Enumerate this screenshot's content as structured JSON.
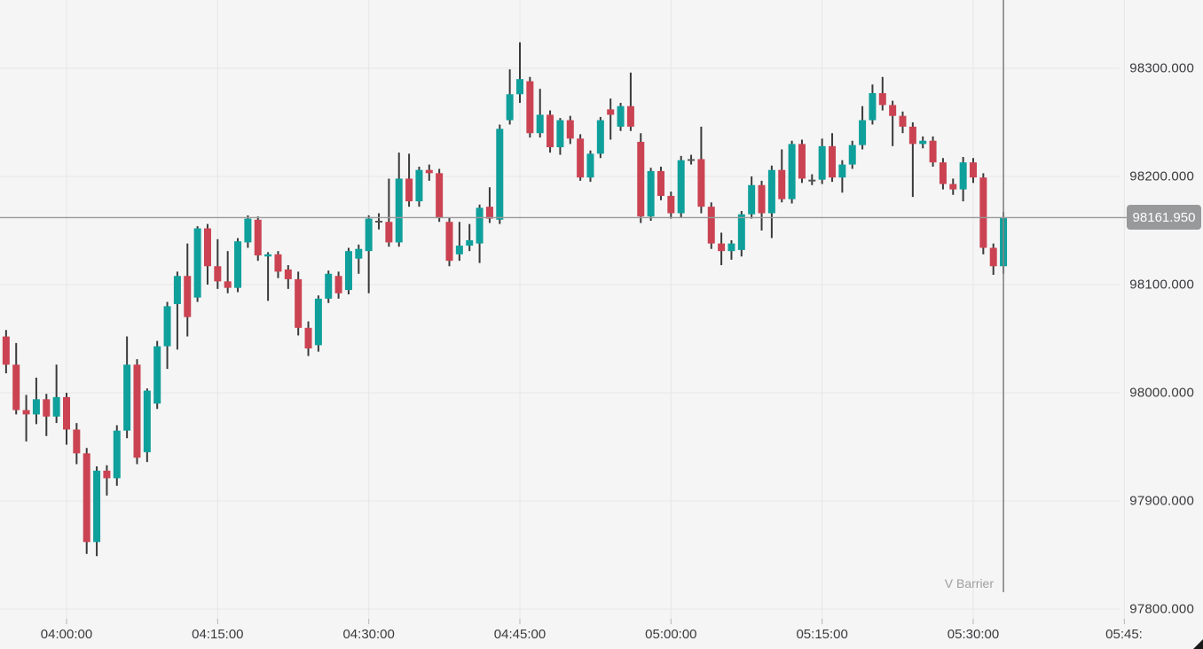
{
  "page": {
    "background": "#f5f5f5"
  },
  "spot": {
    "badge_label": "98161.950"
  },
  "barrier": {
    "label": "V Barrier"
  },
  "chart_data": {
    "type": "candlestick",
    "interval": "1m",
    "title": "",
    "xlabel": "",
    "ylabel": "",
    "x_axis": {
      "labels": [
        "04:00:00",
        "04:15:00",
        "04:30:00",
        "04:45:00",
        "05:00:00",
        "05:15:00",
        "05:30:00",
        "05:45:"
      ],
      "times": [
        "04:00",
        "04:15",
        "04:30",
        "04:45",
        "05:00",
        "05:15",
        "05:30",
        "05:45"
      ]
    },
    "y_axis": {
      "labels": [
        "98300.000",
        "98200.000",
        "98100.000",
        "98000.000",
        "97900.000",
        "97800.000"
      ],
      "values": [
        98300,
        98200,
        98100,
        98000,
        97900,
        97800
      ]
    },
    "y_range_visible": [
      97790,
      98363
    ],
    "grid": true,
    "current_spot": {
      "value": 98161.95,
      "label": "98161.950",
      "time": "05:33"
    },
    "barrier": {
      "label": "V Barrier",
      "time": "05:33"
    },
    "colors": {
      "bull": "#0fa09c",
      "bear": "#cb4352",
      "wick": "#3a3a3a",
      "doji": "#555555",
      "grid": "#e6e6e6",
      "spot_line": "#999999",
      "badge_bg": "#98999b",
      "badge_text": "#ffffff",
      "barrier_line": "#848484",
      "barrier_text": "#9e9e9e",
      "axis_text": "#3a3a3e",
      "tick": "#b5b5b5"
    },
    "candles": [
      [
        "03:54",
        98052,
        98058,
        98018,
        98026
      ],
      [
        "03:55",
        98026,
        98046,
        97980,
        97984
      ],
      [
        "03:56",
        97984,
        97998,
        97955,
        97980
      ],
      [
        "03:57",
        97980,
        98014,
        97971,
        97994
      ],
      [
        "03:58",
        97994,
        97999,
        97960,
        97978
      ],
      [
        "03:59",
        97978,
        98026,
        97972,
        97996
      ],
      [
        "04:00",
        97996,
        98000,
        97952,
        97966
      ],
      [
        "04:01",
        97966,
        97972,
        97934,
        97944
      ],
      [
        "04:02",
        97944,
        97949,
        97851,
        97862
      ],
      [
        "04:03",
        97862,
        97932,
        97849,
        97928
      ],
      [
        "04:04",
        97928,
        97933,
        97905,
        97921
      ],
      [
        "04:05",
        97921,
        97970,
        97914,
        97965
      ],
      [
        "04:06",
        97965,
        98052,
        97958,
        98026
      ],
      [
        "04:07",
        98026,
        98031,
        97934,
        97940
      ],
      [
        "04:08",
        97945,
        98004,
        97936,
        98002
      ],
      [
        "04:09",
        97990,
        98048,
        97985,
        98043
      ],
      [
        "04:10",
        98043,
        98084,
        98022,
        98080
      ],
      [
        "04:11",
        98082,
        98112,
        98040,
        98108
      ],
      [
        "04:12",
        98108,
        98138,
        98052,
        98070
      ],
      [
        "04:13",
        98088,
        98154,
        98084,
        98152
      ],
      [
        "04:14",
        98152,
        98156,
        98100,
        98117
      ],
      [
        "04:15",
        98117,
        98142,
        98096,
        98103
      ],
      [
        "04:16",
        98103,
        98131,
        98092,
        98097
      ],
      [
        "04:17",
        98097,
        98143,
        98093,
        98140
      ],
      [
        "04:18",
        98139,
        98164,
        98134,
        98161
      ],
      [
        "04:19",
        98160,
        98163,
        98122,
        98127
      ],
      [
        "04:20",
        98126,
        98130,
        98085,
        98128
      ],
      [
        "04:21",
        98128,
        98131,
        98106,
        98112
      ],
      [
        "04:22",
        98114,
        98118,
        98096,
        98105
      ],
      [
        "04:23",
        98105,
        98112,
        98053,
        98060
      ],
      [
        "04:24",
        98060,
        98066,
        98034,
        98041
      ],
      [
        "04:25",
        98044,
        98090,
        98038,
        98087
      ],
      [
        "04:26",
        98087,
        98113,
        98083,
        98110
      ],
      [
        "04:27",
        98108,
        98112,
        98087,
        98092
      ],
      [
        "04:28",
        98095,
        98134,
        98091,
        98131
      ],
      [
        "04:29",
        98124,
        98137,
        98110,
        98133
      ],
      [
        "04:30",
        98131,
        98164,
        98092,
        98161
      ],
      [
        "04:31",
        98159,
        98166,
        98151,
        98159
      ],
      [
        "04:32",
        98158,
        98198,
        98135,
        98139
      ],
      [
        "04:33",
        98139,
        98222,
        98135,
        98198
      ],
      [
        "04:34",
        98198,
        98221,
        98172,
        98177
      ],
      [
        "04:35",
        98177,
        98209,
        98172,
        98206
      ],
      [
        "04:36",
        98206,
        98211,
        98196,
        98203
      ],
      [
        "04:37",
        98203,
        98207,
        98158,
        98162
      ],
      [
        "04:38",
        98158,
        98162,
        98117,
        98122
      ],
      [
        "04:39",
        98128,
        98158,
        98122,
        98136
      ],
      [
        "04:40",
        98136,
        98156,
        98131,
        98141
      ],
      [
        "04:41",
        98138,
        98174,
        98120,
        98171
      ],
      [
        "04:42",
        98172,
        98190,
        98157,
        98161
      ],
      [
        "04:43",
        98160,
        98248,
        98156,
        98244
      ],
      [
        "04:44",
        98252,
        98299,
        98248,
        98276
      ],
      [
        "04:45",
        98276,
        98324,
        98268,
        98290
      ],
      [
        "04:46",
        98288,
        98292,
        98236,
        98240
      ],
      [
        "04:47",
        98240,
        98281,
        98236,
        98257
      ],
      [
        "04:48",
        98257,
        98261,
        98222,
        98227
      ],
      [
        "04:49",
        98227,
        98254,
        98220,
        98252
      ],
      [
        "04:50",
        98252,
        98256,
        98230,
        98235
      ],
      [
        "04:51",
        98235,
        98239,
        98196,
        98199
      ],
      [
        "04:52",
        98199,
        98224,
        98195,
        98221
      ],
      [
        "04:53",
        98221,
        98255,
        98217,
        98252
      ],
      [
        "04:54",
        98262,
        98272,
        98234,
        98257
      ],
      [
        "04:55",
        98246,
        98268,
        98242,
        98265
      ],
      [
        "04:56",
        98265,
        98296,
        98242,
        98246
      ],
      [
        "04:57",
        98232,
        98240,
        98157,
        98163
      ],
      [
        "04:58",
        98163,
        98208,
        98159,
        98205
      ],
      [
        "04:59",
        98205,
        98209,
        98178,
        98182
      ],
      [
        "05:00",
        98182,
        98186,
        98161,
        98166
      ],
      [
        "05:01",
        98166,
        98219,
        98162,
        98215
      ],
      [
        "05:02",
        98216,
        98220,
        98211,
        98216
      ],
      [
        "05:03",
        98216,
        98246,
        98166,
        98172
      ],
      [
        "05:04",
        98172,
        98176,
        98133,
        98138
      ],
      [
        "05:05",
        98138,
        98148,
        98118,
        98131
      ],
      [
        "05:06",
        98131,
        98141,
        98123,
        98138
      ],
      [
        "05:07",
        98132,
        98168,
        98126,
        98165
      ],
      [
        "05:08",
        98165,
        98200,
        98161,
        98192
      ],
      [
        "05:09",
        98192,
        98196,
        98150,
        98166
      ],
      [
        "05:10",
        98166,
        98210,
        98143,
        98206
      ],
      [
        "05:11",
        98206,
        98225,
        98176,
        98179
      ],
      [
        "05:12",
        98179,
        98233,
        98175,
        98230
      ],
      [
        "05:13",
        98230,
        98234,
        98194,
        98198
      ],
      [
        "05:14",
        98197,
        98202,
        98192,
        98197
      ],
      [
        "05:15",
        98197,
        98235,
        98193,
        98228
      ],
      [
        "05:16",
        98228,
        98240,
        98195,
        98199
      ],
      [
        "05:17",
        98199,
        98215,
        98185,
        98211
      ],
      [
        "05:18",
        98211,
        98233,
        98207,
        98229
      ],
      [
        "05:19",
        98229,
        98265,
        98225,
        98252
      ],
      [
        "05:20",
        98252,
        98285,
        98248,
        98277
      ],
      [
        "05:21",
        98277,
        98292,
        98261,
        98266
      ],
      [
        "05:22",
        98266,
        98270,
        98228,
        98256
      ],
      [
        "05:23",
        98256,
        98260,
        98240,
        98246
      ],
      [
        "05:24",
        98246,
        98250,
        98181,
        98230
      ],
      [
        "05:25",
        98230,
        98237,
        98226,
        98233
      ],
      [
        "05:26",
        98233,
        98237,
        98209,
        98213
      ],
      [
        "05:27",
        98213,
        98217,
        98188,
        98193
      ],
      [
        "05:28",
        98193,
        98198,
        98183,
        98188
      ],
      [
        "05:29",
        98188,
        98218,
        98177,
        98213
      ],
      [
        "05:30",
        98213,
        98217,
        98194,
        98199
      ],
      [
        "05:31",
        98199,
        98203,
        98128,
        98134
      ],
      [
        "05:32",
        98134,
        98138,
        98109,
        98117
      ],
      [
        "05:33",
        98117,
        98167,
        98110,
        98162
      ]
    ]
  }
}
